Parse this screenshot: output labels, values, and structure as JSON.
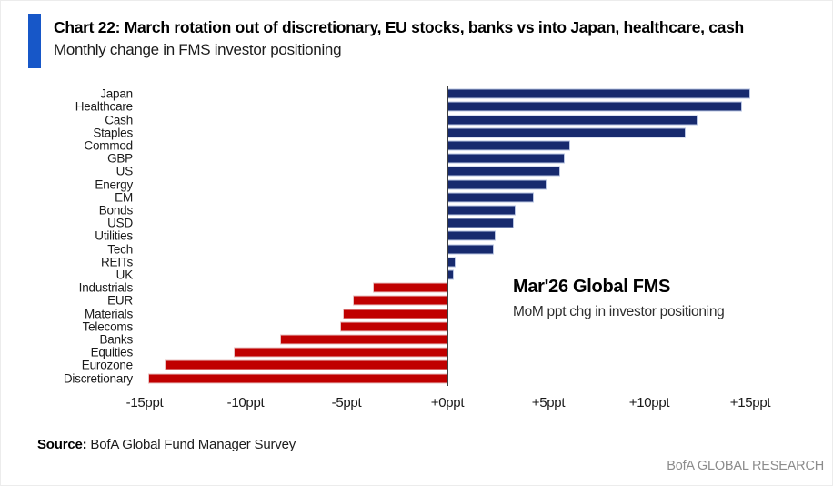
{
  "header": {
    "title": "Chart 22: March rotation out of discretionary, EU stocks, banks vs into Japan, healthcare, cash",
    "subtitle": "Monthly change in FMS investor positioning"
  },
  "chart_data": {
    "type": "bar",
    "orientation": "horizontal",
    "title": "Chart 22: March rotation out of discretionary, EU stocks, banks vs into Japan, healthcare, cash",
    "subtitle": "Monthly change in FMS investor positioning",
    "categories": [
      "Japan",
      "Healthcare",
      "Cash",
      "Staples",
      "Commod",
      "GBP",
      "US",
      "Energy",
      "EM",
      "Bonds",
      "USD",
      "Utilities",
      "Tech",
      "REITs",
      "UK",
      "Industrials",
      "EUR",
      "Materials",
      "Telecoms",
      "Banks",
      "Equities",
      "Eurozone",
      "Discretionary"
    ],
    "values": [
      15.0,
      14.6,
      12.4,
      11.8,
      6.1,
      5.8,
      5.6,
      4.9,
      4.3,
      3.4,
      3.3,
      2.4,
      2.3,
      0.4,
      0.3,
      -3.7,
      -4.7,
      -5.2,
      -5.3,
      -8.3,
      -10.6,
      -14.0,
      -14.8
    ],
    "unit": "ppt",
    "xlim": [
      -15,
      15
    ],
    "x_ticks": [
      {
        "value": -15,
        "label": "-15ppt"
      },
      {
        "value": -10,
        "label": "-10ppt"
      },
      {
        "value": -5,
        "label": "-5ppt"
      },
      {
        "value": 0,
        "label": "+0ppt"
      },
      {
        "value": 5,
        "label": "+5ppt"
      },
      {
        "value": 10,
        "label": "+10ppt"
      },
      {
        "value": 15,
        "label": "+15ppt"
      }
    ],
    "grid": false,
    "annotation": {
      "line1": "Mar'26 Global FMS",
      "line2": "MoM ppt chg in investor positioning"
    },
    "colors": {
      "positive": "#172a6e",
      "negative": "#c00000",
      "accent": "#1757c8"
    }
  },
  "footer": {
    "source_label": "Source:",
    "source_text": " BofA Global Fund Manager Survey",
    "brand": "BofA GLOBAL RESEARCH"
  }
}
